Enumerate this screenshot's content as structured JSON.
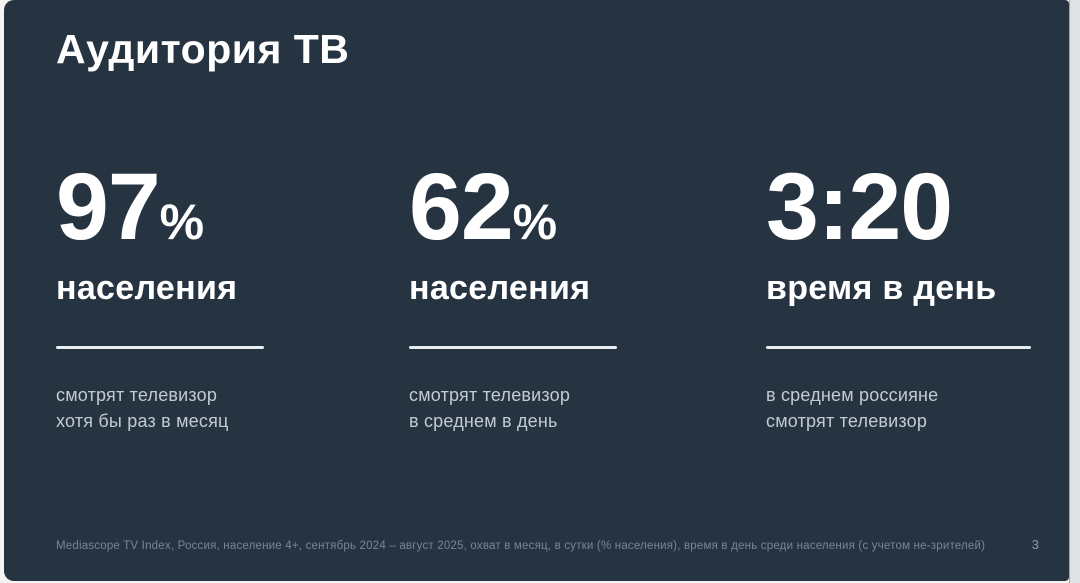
{
  "slide": {
    "title": "Аудитория ТВ",
    "stats": [
      {
        "value": "97",
        "unit": "%",
        "label": "населения",
        "description": "смотрят телевизор\nхотя бы раз в месяц"
      },
      {
        "value": "62",
        "unit": "%",
        "label": "населения",
        "description": "смотрят телевизор\nв среднем в день"
      },
      {
        "value": "3:20",
        "unit": "",
        "label": "время в день",
        "description": "в среднем россияне\nсмотрят телевизор"
      }
    ],
    "footer": {
      "source": "Mediascope TV Index, Россия, население 4+, сентябрь 2024 – август 2025, охват в месяц, в сутки (% населения), время в день среди населения (с учетом не-зрителей)",
      "page_number": "3"
    },
    "colors": {
      "background": "#263341",
      "text_primary": "#ffffff",
      "text_secondary": "#c2cad3",
      "text_footer": "#76859a",
      "divider": "#e9eef3"
    }
  }
}
